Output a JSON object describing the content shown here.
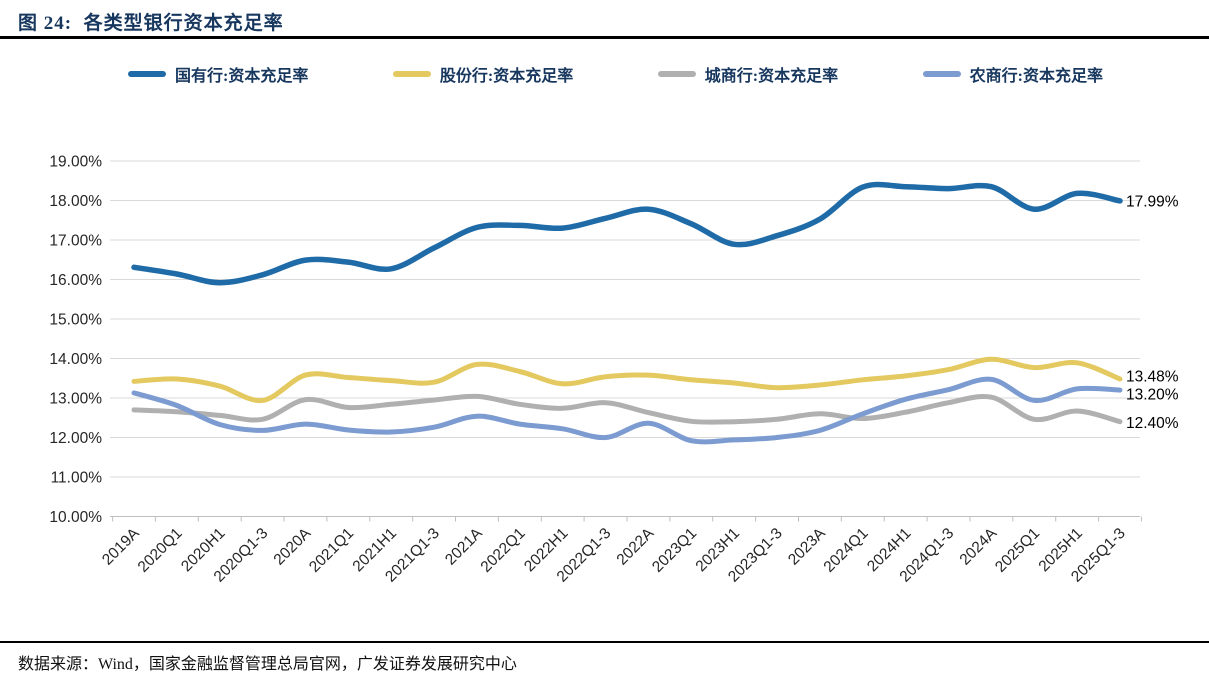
{
  "header": {
    "title": "图 24:  各类型银行资本充足率"
  },
  "legend": [
    {
      "label": "国有行:资本充足率",
      "color": "#1F6BA8"
    },
    {
      "label": "股份行:资本充足率",
      "color": "#E3C95F"
    },
    {
      "label": "城商行:资本充足率",
      "color": "#B0B0B0"
    },
    {
      "label": "农商行:资本充足率",
      "color": "#7C9BD0"
    }
  ],
  "chart_data": {
    "type": "line",
    "smooth": true,
    "title": "各类型银行资本充足率",
    "xlabel": "",
    "ylabel": "",
    "ylim": [
      10,
      19
    ],
    "ytick_step": 1,
    "grid": true,
    "legend_position": "top",
    "yticks": [
      "19.00%",
      "18.00%",
      "17.00%",
      "16.00%",
      "15.00%",
      "14.00%",
      "13.00%",
      "12.00%",
      "11.00%",
      "10.00%"
    ],
    "categories": [
      "2019A",
      "2020Q1",
      "2020H1",
      "2020Q1-3",
      "2020A",
      "2021Q1",
      "2021H1",
      "2021Q1-3",
      "2021A",
      "2022Q1",
      "2022H1",
      "2022Q1-3",
      "2022A",
      "2023Q1",
      "2023H1",
      "2023Q1-3",
      "2023A",
      "2024Q1",
      "2024H1",
      "2024Q1-3",
      "2024A",
      "2025Q1",
      "2025H1",
      "2025Q1-3"
    ],
    "series": [
      {
        "name": "国有行:资本充足率",
        "color": "#1F6BA8",
        "width": 5.5,
        "end_label": "17.99%",
        "label_dy": 0,
        "values": [
          16.31,
          16.14,
          15.92,
          16.12,
          16.49,
          16.44,
          16.27,
          16.8,
          17.32,
          17.37,
          17.3,
          17.55,
          17.78,
          17.41,
          16.89,
          17.11,
          17.53,
          18.34,
          18.35,
          18.3,
          18.35,
          17.78,
          18.18,
          17.99
        ]
      },
      {
        "name": "股份行:资本充足率",
        "color": "#E3C95F",
        "width": 5,
        "end_label": "13.48%",
        "label_dy": -3,
        "values": [
          13.42,
          13.48,
          13.3,
          12.94,
          13.58,
          13.52,
          13.44,
          13.4,
          13.85,
          13.67,
          13.36,
          13.54,
          13.58,
          13.46,
          13.38,
          13.26,
          13.33,
          13.46,
          13.56,
          13.72,
          13.98,
          13.77,
          13.89,
          13.48
        ]
      },
      {
        "name": "城商行:资本充足率",
        "color": "#B0B0B0",
        "width": 5,
        "end_label": "12.40%",
        "label_dy": 1,
        "values": [
          12.7,
          12.65,
          12.56,
          12.46,
          12.96,
          12.76,
          12.84,
          12.95,
          13.04,
          12.84,
          12.74,
          12.88,
          12.63,
          12.41,
          12.4,
          12.46,
          12.6,
          12.48,
          12.64,
          12.88,
          13.02,
          12.46,
          12.67,
          12.4
        ]
      },
      {
        "name": "农商行:资本充足率",
        "color": "#7C9BD0",
        "width": 5,
        "end_label": "13.20%",
        "label_dy": 4,
        "values": [
          13.13,
          12.81,
          12.33,
          12.18,
          12.34,
          12.19,
          12.14,
          12.26,
          12.54,
          12.34,
          12.22,
          12.0,
          12.36,
          11.92,
          11.94,
          12.0,
          12.18,
          12.6,
          12.97,
          13.21,
          13.47,
          12.94,
          13.23,
          13.2
        ]
      }
    ]
  },
  "footer": {
    "source": "数据来源：Wind，国家金融监督管理总局官网，广发证券发展研究中心"
  },
  "colors": {
    "title": "#17375E",
    "gridline": "#D9D9D9",
    "axis": "#BFBFBF",
    "rule": "#000000"
  }
}
